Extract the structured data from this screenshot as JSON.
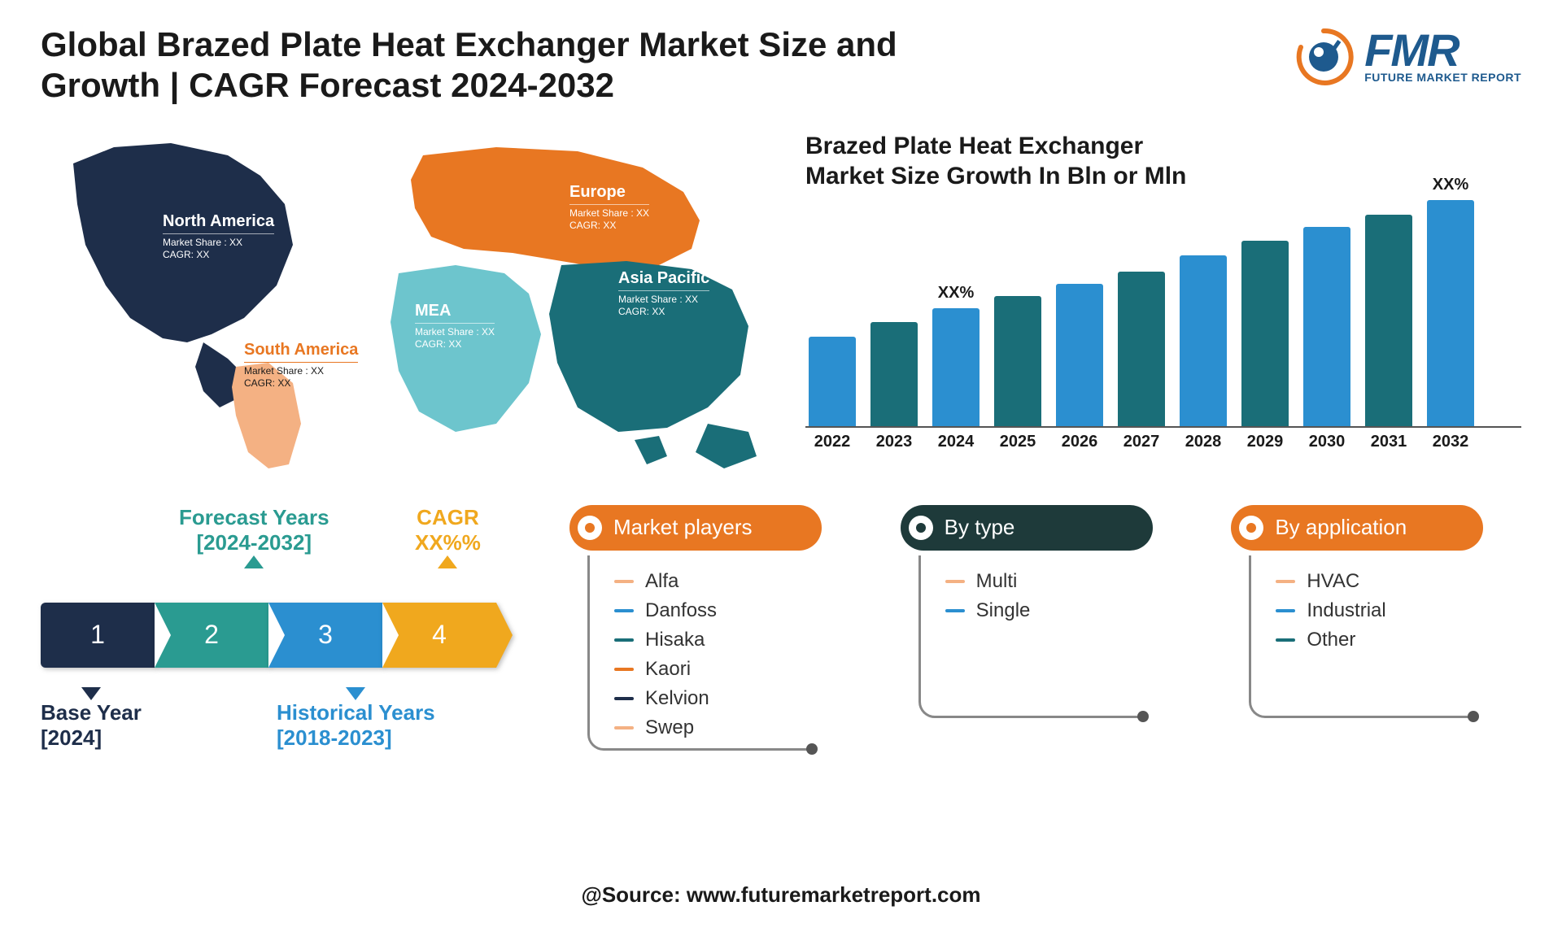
{
  "header": {
    "title": "Global Brazed Plate Heat Exchanger Market Size and Growth | CAGR Forecast 2024-2032",
    "logo_fmr": "FMR",
    "logo_sub": "FUTURE MARKET REPORT",
    "logo_accent": "#e87722",
    "logo_color": "#1e5a8e"
  },
  "map": {
    "regions": {
      "north_america": {
        "name": "North America",
        "share": "Market Share : XX",
        "cagr": "CAGR: XX",
        "color": "#1e2e4a"
      },
      "south_america": {
        "name": "South America",
        "share": "Market Share : XX",
        "cagr": "CAGR: XX",
        "color": "#f4b183"
      },
      "europe": {
        "name": "Europe",
        "share": "Market Share : XX",
        "cagr": "CAGR: XX",
        "color": "#e87722"
      },
      "mea": {
        "name": "MEA",
        "share": "Market Share : XX",
        "cagr": "CAGR: XX",
        "color": "#6dc5cd"
      },
      "asia_pacific": {
        "name": "Asia Pacific",
        "share": "Market Share : XX",
        "cagr": "CAGR: XX",
        "color": "#1a6e78"
      }
    }
  },
  "chart": {
    "title": "Brazed Plate Heat Exchanger Market Size Growth In Bln or Mln",
    "years": [
      "2022",
      "2023",
      "2024",
      "2025",
      "2026",
      "2027",
      "2028",
      "2029",
      "2030",
      "2031",
      "2032"
    ],
    "values": [
      110,
      128,
      145,
      160,
      175,
      190,
      210,
      228,
      245,
      260,
      278
    ],
    "max_height": 278,
    "colors": [
      "#2b8fd0",
      "#1a6e78",
      "#2b8fd0",
      "#1a6e78",
      "#2b8fd0",
      "#1a6e78",
      "#2b8fd0",
      "#1a6e78",
      "#2b8fd0",
      "#1a6e78",
      "#2b8fd0"
    ],
    "top_label_2024": "XX%",
    "top_label_2032": "XX%"
  },
  "timeline": {
    "forecast_label": "Forecast Years",
    "forecast_range": "[2024-2032]",
    "forecast_color": "#2a9b91",
    "cagr_label": "CAGR",
    "cagr_value": "XX%%",
    "cagr_color": "#f0a81e",
    "base_label": "Base Year",
    "base_range": "[2024]",
    "base_color": "#1e2e4a",
    "hist_label": "Historical Years",
    "hist_range": "[2018-2023]",
    "hist_color": "#2b8fd0",
    "seg1": "1",
    "seg2": "2",
    "seg3": "3",
    "seg4": "4",
    "seg_colors": [
      "#1e2e4a",
      "#2a9b91",
      "#2b8fd0",
      "#f0a81e"
    ]
  },
  "cards": {
    "market_players": {
      "title": "Market players",
      "header_color": "#e87722",
      "items": [
        {
          "label": "Alfa",
          "tick": "#f4b183"
        },
        {
          "label": "Danfoss",
          "tick": "#2b8fd0"
        },
        {
          "label": "Hisaka",
          "tick": "#1a6e78"
        },
        {
          "label": "Kaori",
          "tick": "#e87722"
        },
        {
          "label": "Kelvion",
          "tick": "#1e2e4a"
        },
        {
          "label": "Swep",
          "tick": "#f4b183"
        }
      ]
    },
    "by_type": {
      "title": "By type",
      "header_color": "#1e3a3a",
      "items": [
        {
          "label": "Multi",
          "tick": "#f4b183"
        },
        {
          "label": "Single",
          "tick": "#2b8fd0"
        }
      ]
    },
    "by_application": {
      "title": "By application",
      "header_color": "#e87722",
      "items": [
        {
          "label": "HVAC",
          "tick": "#f4b183"
        },
        {
          "label": "Industrial",
          "tick": "#2b8fd0"
        },
        {
          "label": "Other",
          "tick": "#1a6e78"
        }
      ]
    }
  },
  "source": "@Source: www.futuremarketreport.com"
}
